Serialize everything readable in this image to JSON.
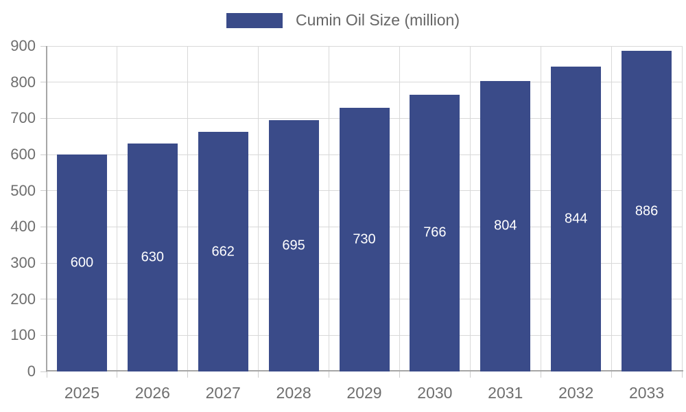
{
  "legend": {
    "label": "Cumin Oil Size (million)"
  },
  "colors": {
    "bar": "#3a4b89",
    "grid": "#d8d8d8",
    "axis": "#a6a6a6",
    "tick": "#cccccc",
    "axis_text": "#6e6e6e",
    "legend_text": "#666666",
    "value_label": "#ffffff"
  },
  "chart_data": {
    "type": "bar",
    "title": "Cumin Oil Size (million)",
    "categories": [
      "2025",
      "2026",
      "2027",
      "2028",
      "2029",
      "2030",
      "2031",
      "2032",
      "2033"
    ],
    "series": [
      {
        "name": "Cumin Oil Size (million)",
        "values": [
          600,
          630,
          662,
          695,
          730,
          766,
          804,
          844,
          886
        ]
      }
    ],
    "values": [
      600,
      630,
      662,
      695,
      730,
      766,
      804,
      844,
      886
    ],
    "value_labels": [
      "600",
      "630",
      "662",
      "695",
      "730",
      "766",
      "804",
      "844",
      "886"
    ],
    "xlabel": "",
    "ylabel": "",
    "ylim": [
      0,
      900
    ],
    "ytick_step": 100,
    "ytick_labels": [
      "0",
      "100",
      "200",
      "300",
      "400",
      "500",
      "600",
      "700",
      "800",
      "900"
    ],
    "grid": true,
    "legend_position": "top-center",
    "bar_color": "#3a4b89",
    "value_label_position": "center-inside"
  }
}
